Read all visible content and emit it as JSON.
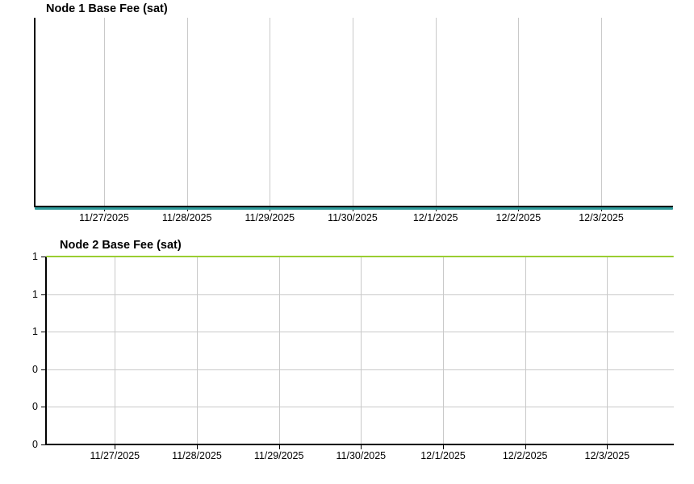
{
  "page": {
    "background": "#FFFFFF"
  },
  "chart_data": [
    {
      "type": "line",
      "title": "Node 1 Base Fee (sat)",
      "xlabel": "",
      "ylabel": "",
      "x_tick_labels": [
        "11/27/2025",
        "11/28/2025",
        "11/29/2025",
        "11/30/2025",
        "12/1/2025",
        "12/2/2025",
        "12/3/2025"
      ],
      "y_tick_labels": [],
      "ylim": [
        0,
        1
      ],
      "grid": "vertical-only",
      "legend": "none",
      "axis_color": "#000000",
      "grid_color": "#C9C9C9",
      "series": [
        {
          "name": "Node 1 Base Fee (sat)",
          "color": "#2E9B9B",
          "values": [
            0,
            0,
            0,
            0,
            0,
            0,
            0
          ],
          "constant_value": 0
        }
      ]
    },
    {
      "type": "line",
      "title": "Node 2 Base Fee (sat)",
      "xlabel": "",
      "ylabel": "",
      "x_tick_labels": [
        "11/27/2025",
        "11/28/2025",
        "11/29/2025",
        "11/30/2025",
        "12/1/2025",
        "12/2/2025",
        "12/3/2025"
      ],
      "y_tick_labels": [
        "1",
        "1",
        "1",
        "0",
        "0",
        "0"
      ],
      "y_tick_values": [
        1.0,
        0.8,
        0.6,
        0.4,
        0.2,
        0.0
      ],
      "ylim": [
        0,
        1
      ],
      "grid": "both",
      "legend": "none",
      "axis_color": "#000000",
      "grid_color": "#C9C9C9",
      "series": [
        {
          "name": "Node 2 Base Fee (sat)",
          "color": "#9ACD32",
          "values": [
            1,
            1,
            1,
            1,
            1,
            1,
            1
          ],
          "constant_value": 1
        }
      ]
    }
  ]
}
